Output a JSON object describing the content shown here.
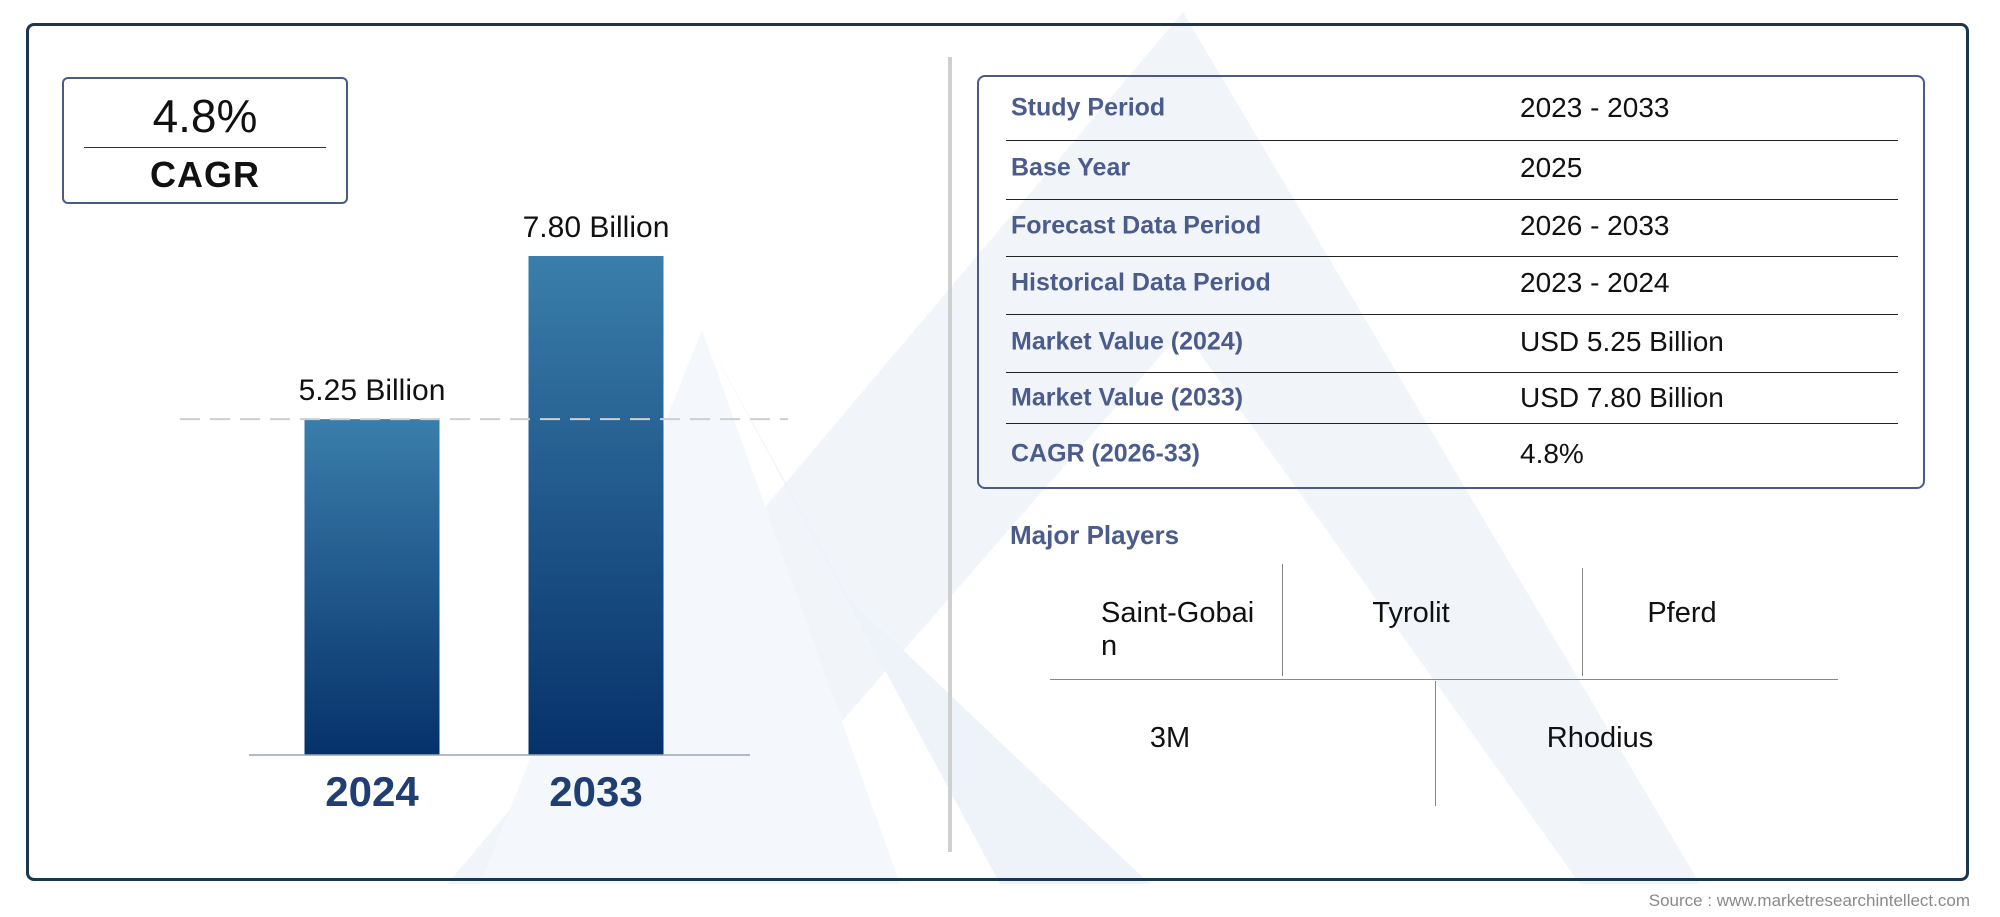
{
  "cagr_box": {
    "value": "4.8%",
    "label": "CAGR"
  },
  "chart_data": {
    "type": "bar",
    "categories": [
      "2024",
      "2033"
    ],
    "values": [
      5.25,
      7.8
    ],
    "data_labels": [
      "5.25 Billion",
      "7.80 Billion"
    ],
    "unit": "Billion",
    "ylim": [
      0,
      8.5
    ],
    "reference_line": {
      "value": 5.25,
      "style": "dashed"
    },
    "bar_gradient": [
      "#3a7eab",
      "#06316a"
    ],
    "year_color": "#1f3f73",
    "grid": false
  },
  "info_table": [
    {
      "label": "Study Period",
      "value": "2023 - 2033"
    },
    {
      "label": "Base Year",
      "value": "2025"
    },
    {
      "label": "Forecast Data Period",
      "value": "2026 - 2033"
    },
    {
      "label": "Historical Data Period",
      "value": "2023 - 2024"
    },
    {
      "label": "Market Value (2024)",
      "value": "USD 5.25 Billion"
    },
    {
      "label": "Market Value (2033)",
      "value": "USD 7.80 Billion"
    },
    {
      "label": "CAGR (2026-33)",
      "value": "4.8%"
    }
  ],
  "major_players": {
    "title": "Major Players",
    "players": [
      "Saint-Gobai\nn",
      "Tyrolit",
      "Pferd",
      "3M",
      "Rhodius"
    ]
  },
  "source": "Source : www.marketresearchintellect.com",
  "colors": {
    "frame": "#1c3550",
    "label": "#4b5b8c",
    "watermark": "#eef3f9"
  }
}
